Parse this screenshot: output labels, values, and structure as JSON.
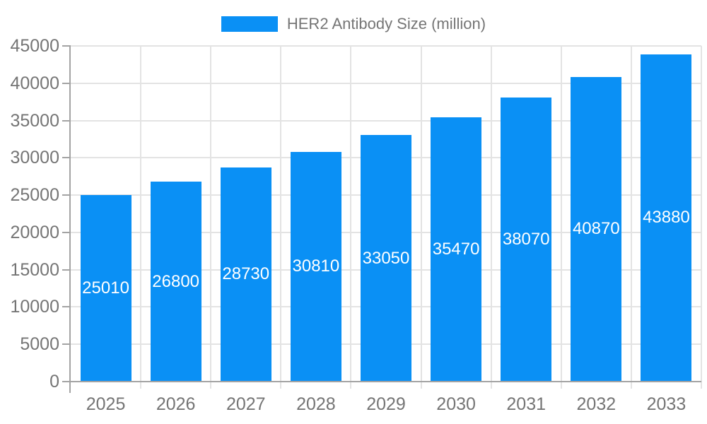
{
  "chart_data": {
    "type": "bar",
    "title": "",
    "legend": "HER2 Antibody Size (million)",
    "legend_position": "top-center",
    "categories": [
      "2025",
      "2026",
      "2027",
      "2028",
      "2029",
      "2030",
      "2031",
      "2032",
      "2033"
    ],
    "values": [
      25010,
      26800,
      28730,
      30810,
      33050,
      35470,
      38070,
      40870,
      43880
    ],
    "xlabel": "",
    "ylabel": "",
    "ylim": [
      0,
      45000
    ],
    "yticks": [
      0,
      5000,
      10000,
      15000,
      20000,
      25000,
      30000,
      35000,
      40000,
      45000
    ],
    "grid": "both",
    "bar_color": "#0a90f5",
    "bar_label_color": "#ffffff",
    "axis_label_color": "#757575",
    "grid_color": "#e3e3e3",
    "axis_line_color": "#a3a3a3",
    "background_color": "#ffffff"
  }
}
